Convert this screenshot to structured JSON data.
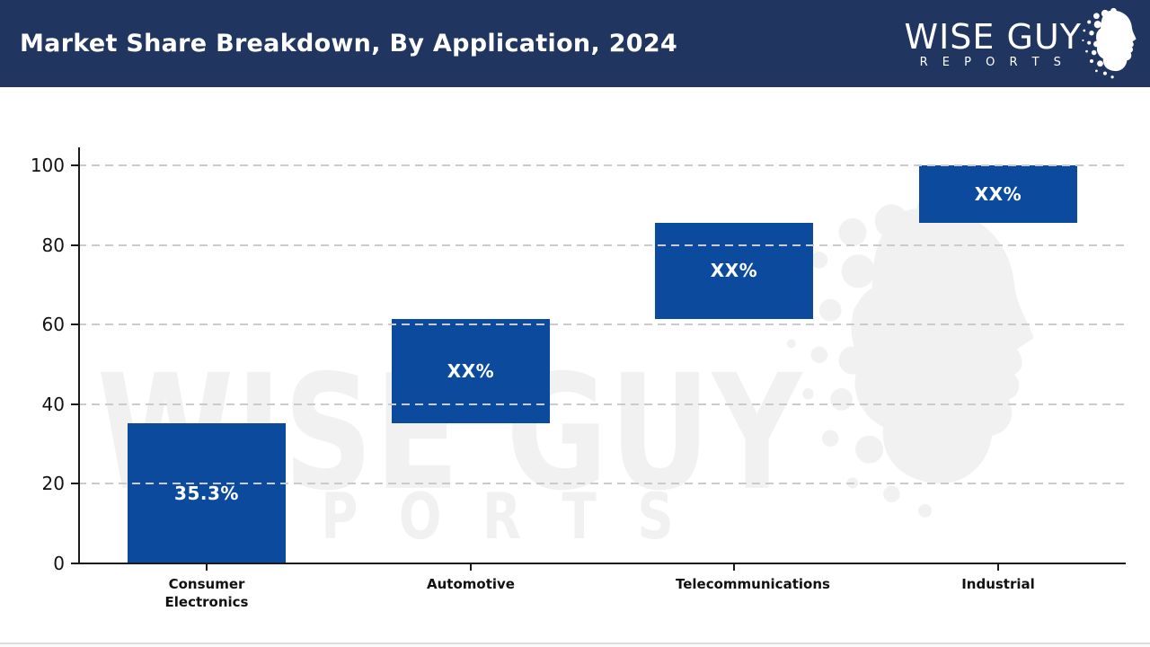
{
  "header": {
    "title": "Market Share Breakdown, By Application, 2024",
    "logo": {
      "name": "WISE GUY",
      "tagline": "R E P O R T S"
    }
  },
  "watermark": {
    "name": "WISE GUY",
    "tagline": "R E P O R T S"
  },
  "chart_data": {
    "type": "bar",
    "subtype": "stacked-waterfall-percentage",
    "title": "Market Share Breakdown, By Application, 2024",
    "categories": [
      "Consumer Electronics",
      "Automotive",
      "Telecommunications",
      "Industrial"
    ],
    "series": [
      {
        "name": "Consumer Electronics",
        "start": 0,
        "end": 35.3,
        "value_label": "35.3%"
      },
      {
        "name": "Automotive",
        "start": 35.3,
        "end": 61.5,
        "value_label": "XX%"
      },
      {
        "name": "Telecommunications",
        "start": 61.5,
        "end": 85.5,
        "value_label": "XX%"
      },
      {
        "name": "Industrial",
        "start": 85.5,
        "end": 100,
        "value_label": "XX%"
      }
    ],
    "y_ticks": [
      0,
      20,
      40,
      60,
      80,
      100
    ],
    "ylim": [
      0,
      104.5
    ],
    "grid": {
      "horizontal": true,
      "style": "dashed"
    },
    "legend": "none",
    "bar_color": "#0c4a9e",
    "value_label_color": "#ffffff"
  },
  "colors": {
    "header_bg": "#20355f",
    "bar": "#0c4a9e",
    "grid": "#cbcbcb",
    "axis": "#1a1a1a",
    "watermark": "#f1f1f2",
    "footer_line": "#dcdcdc"
  }
}
